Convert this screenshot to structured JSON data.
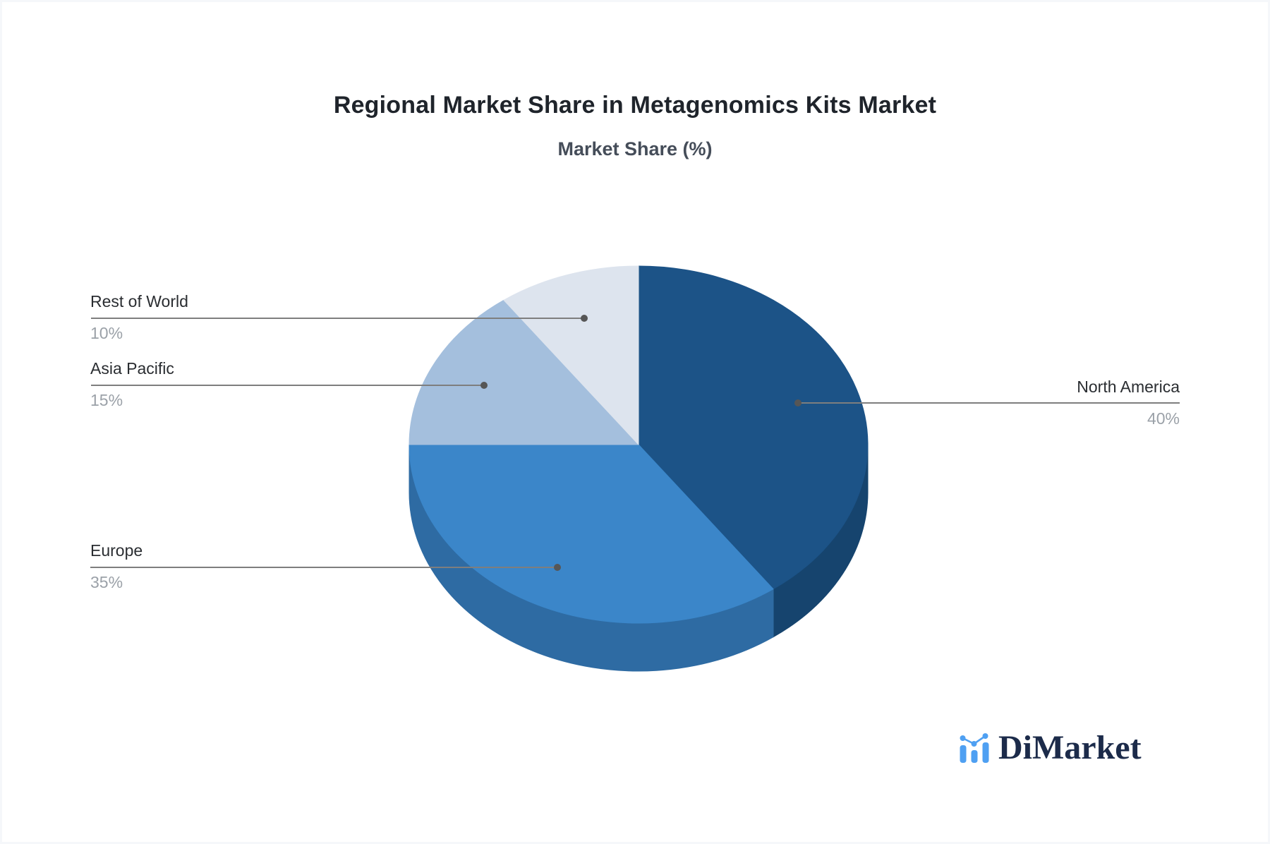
{
  "page": {
    "background": "#ffffff",
    "border_color": "#f5f7fa"
  },
  "chart_data": {
    "type": "pie",
    "style": "3d-pie",
    "title": "Regional Market Share in Metagenomics Kits Market",
    "subtitle": "Market Share (%)",
    "unit": "%",
    "start_angle_deg": 0,
    "direction": "clockwise",
    "legend_position": "callout-labels",
    "slices": [
      {
        "label": "North America",
        "value": 40,
        "display": "40%",
        "color": "#1C5387",
        "side_color": "#16446E"
      },
      {
        "label": "Europe",
        "value": 35,
        "display": "35%",
        "color": "#3B86C9",
        "side_color": "#2E6BA3"
      },
      {
        "label": "Asia Pacific",
        "value": 15,
        "display": "15%",
        "color": "#A4BFDD",
        "side_color": "#8FABCB"
      },
      {
        "label": "Rest of World",
        "value": 10,
        "display": "10%",
        "color": "#DDE4EE",
        "side_color": "#C5CEDC"
      }
    ],
    "callout_line_color": "#7e7e7e",
    "callout_dot_color": "#565656",
    "label_text_color": "#2a2d31",
    "value_text_color": "#9ba1a8",
    "title_color": "#1f242b",
    "subtitle_color": "#454d59"
  },
  "branding": {
    "logo_text": "DiMarket",
    "logo_icon": "bar-chart-logo-icon",
    "logo_icon_color": "#4FA0F2",
    "logo_text_color": "#1c2b4a"
  }
}
